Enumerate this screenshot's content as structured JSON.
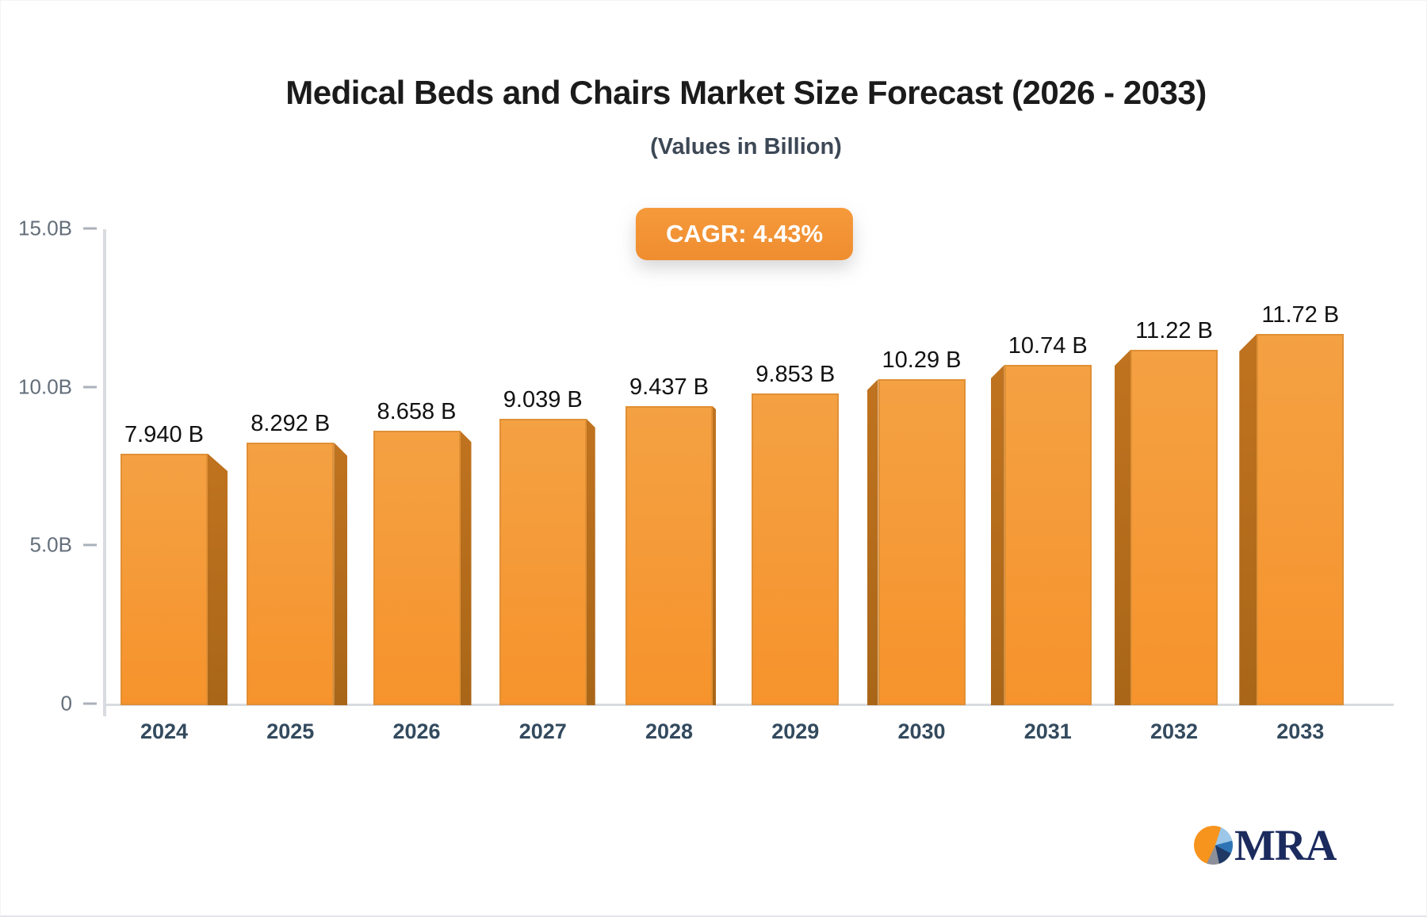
{
  "header": {
    "title": "Medical Beds and Chairs Market Size Forecast (2026 - 2033)",
    "subtitle": "(Values in Billion)"
  },
  "badge": {
    "label": "CAGR: 4.43%"
  },
  "chart_data": {
    "type": "bar",
    "title": "Medical Beds and Chairs Market Size Forecast (2026 - 2033)",
    "subtitle": "(Values in Billion)",
    "categories": [
      "2024",
      "2025",
      "2026",
      "2027",
      "2028",
      "2029",
      "2030",
      "2031",
      "2032",
      "2033"
    ],
    "values": [
      7.94,
      8.292,
      8.658,
      9.039,
      9.437,
      9.853,
      10.29,
      10.74,
      11.22,
      11.72
    ],
    "value_labels": [
      "7.940 B",
      "8.292 B",
      "8.658 B",
      "9.039 B",
      "9.437 B",
      "9.853 B",
      "10.29 B",
      "10.74 B",
      "11.22 B",
      "11.72 B"
    ],
    "cagr_label": "CAGR: 4.43%",
    "xlabel": "",
    "ylabel": "",
    "ylim": [
      0,
      15
    ],
    "yticks": {
      "values": [
        15,
        10,
        5,
        0
      ],
      "labels": [
        "15.0B",
        "10.0B",
        "5.0B",
        "0"
      ]
    },
    "grid": false,
    "legend": false,
    "bar_style": "3d-perspective",
    "colors": {
      "bar_face_top": "#f4a143",
      "bar_face_bottom": "#f6932c",
      "bar_face_border": "#de8f36",
      "bar_side": "#b06c1c",
      "axis": "#d8dbe0",
      "tick_text": "#646e7a",
      "category_text": "#334a5e",
      "value_text": "#121212",
      "badge_bg": "#f2913a"
    }
  },
  "logo": {
    "text": "MRA",
    "text_color": "#1c2b5e",
    "pie_slices": {
      "orange": "#f7941e",
      "light_blue": "#9cc7e8",
      "blue": "#2e74b5",
      "navy": "#1f3864",
      "gray": "#8e9099"
    }
  }
}
